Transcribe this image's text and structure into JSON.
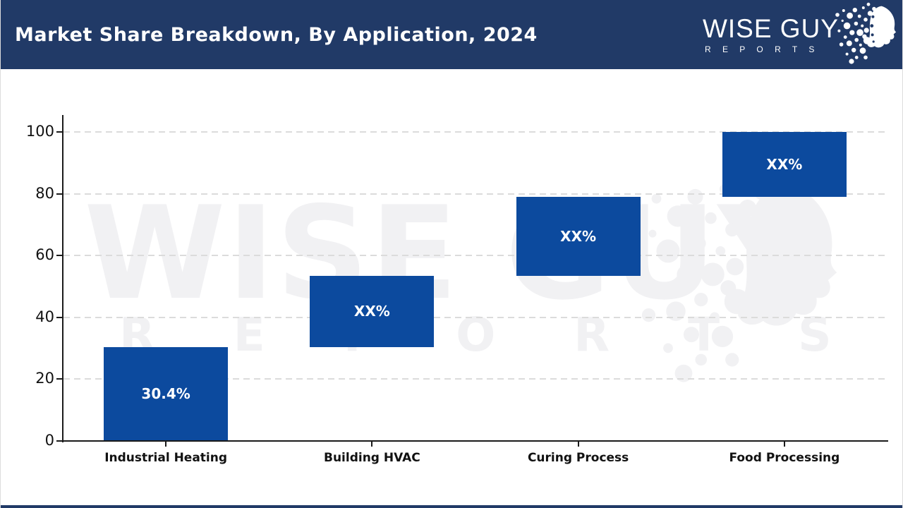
{
  "header": {
    "title": "Market Share Breakdown, By Application, 2024",
    "logo": {
      "brand_top": "WISE GUY",
      "brand_bottom": "R E P O R T S"
    }
  },
  "watermark": {
    "line1": "WISE GUY",
    "line2": "R E P O R T S"
  },
  "colors": {
    "header_bg": "#213A67",
    "footer_bg": "#213A67",
    "bar_fill": "#0C4A9E",
    "bar_label_text": "#FFFFFF",
    "axis": "#1a1a1a",
    "grid": "#DBDBDB",
    "tick_label": "#111111",
    "category_label": "#111111",
    "watermark": "#F1F1F3",
    "title_text": "#FFFFFF"
  },
  "chart_data": {
    "type": "bar",
    "subtype": "floating-waterfall",
    "title": "Market Share Breakdown, By Application, 2024",
    "categories": [
      "Industrial Heating",
      "Building HVAC",
      "Curing Process",
      "Food Processing"
    ],
    "segments": [
      {
        "category": "Industrial Heating",
        "start": 0,
        "end": 30.4,
        "label": "30.4%"
      },
      {
        "category": "Building HVAC",
        "start": 30.4,
        "end": 53.5,
        "label": "XX%"
      },
      {
        "category": "Curing Process",
        "start": 53.5,
        "end": 78.9,
        "label": "XX%"
      },
      {
        "category": "Food Processing",
        "start": 78.9,
        "end": 100,
        "label": "XX%"
      }
    ],
    "xlabel": "",
    "ylabel": "",
    "yticks": [
      0,
      20,
      40,
      60,
      80,
      100
    ],
    "ylim": [
      0,
      105.7
    ],
    "grid": "horizontal-dashed",
    "legend": "none"
  }
}
